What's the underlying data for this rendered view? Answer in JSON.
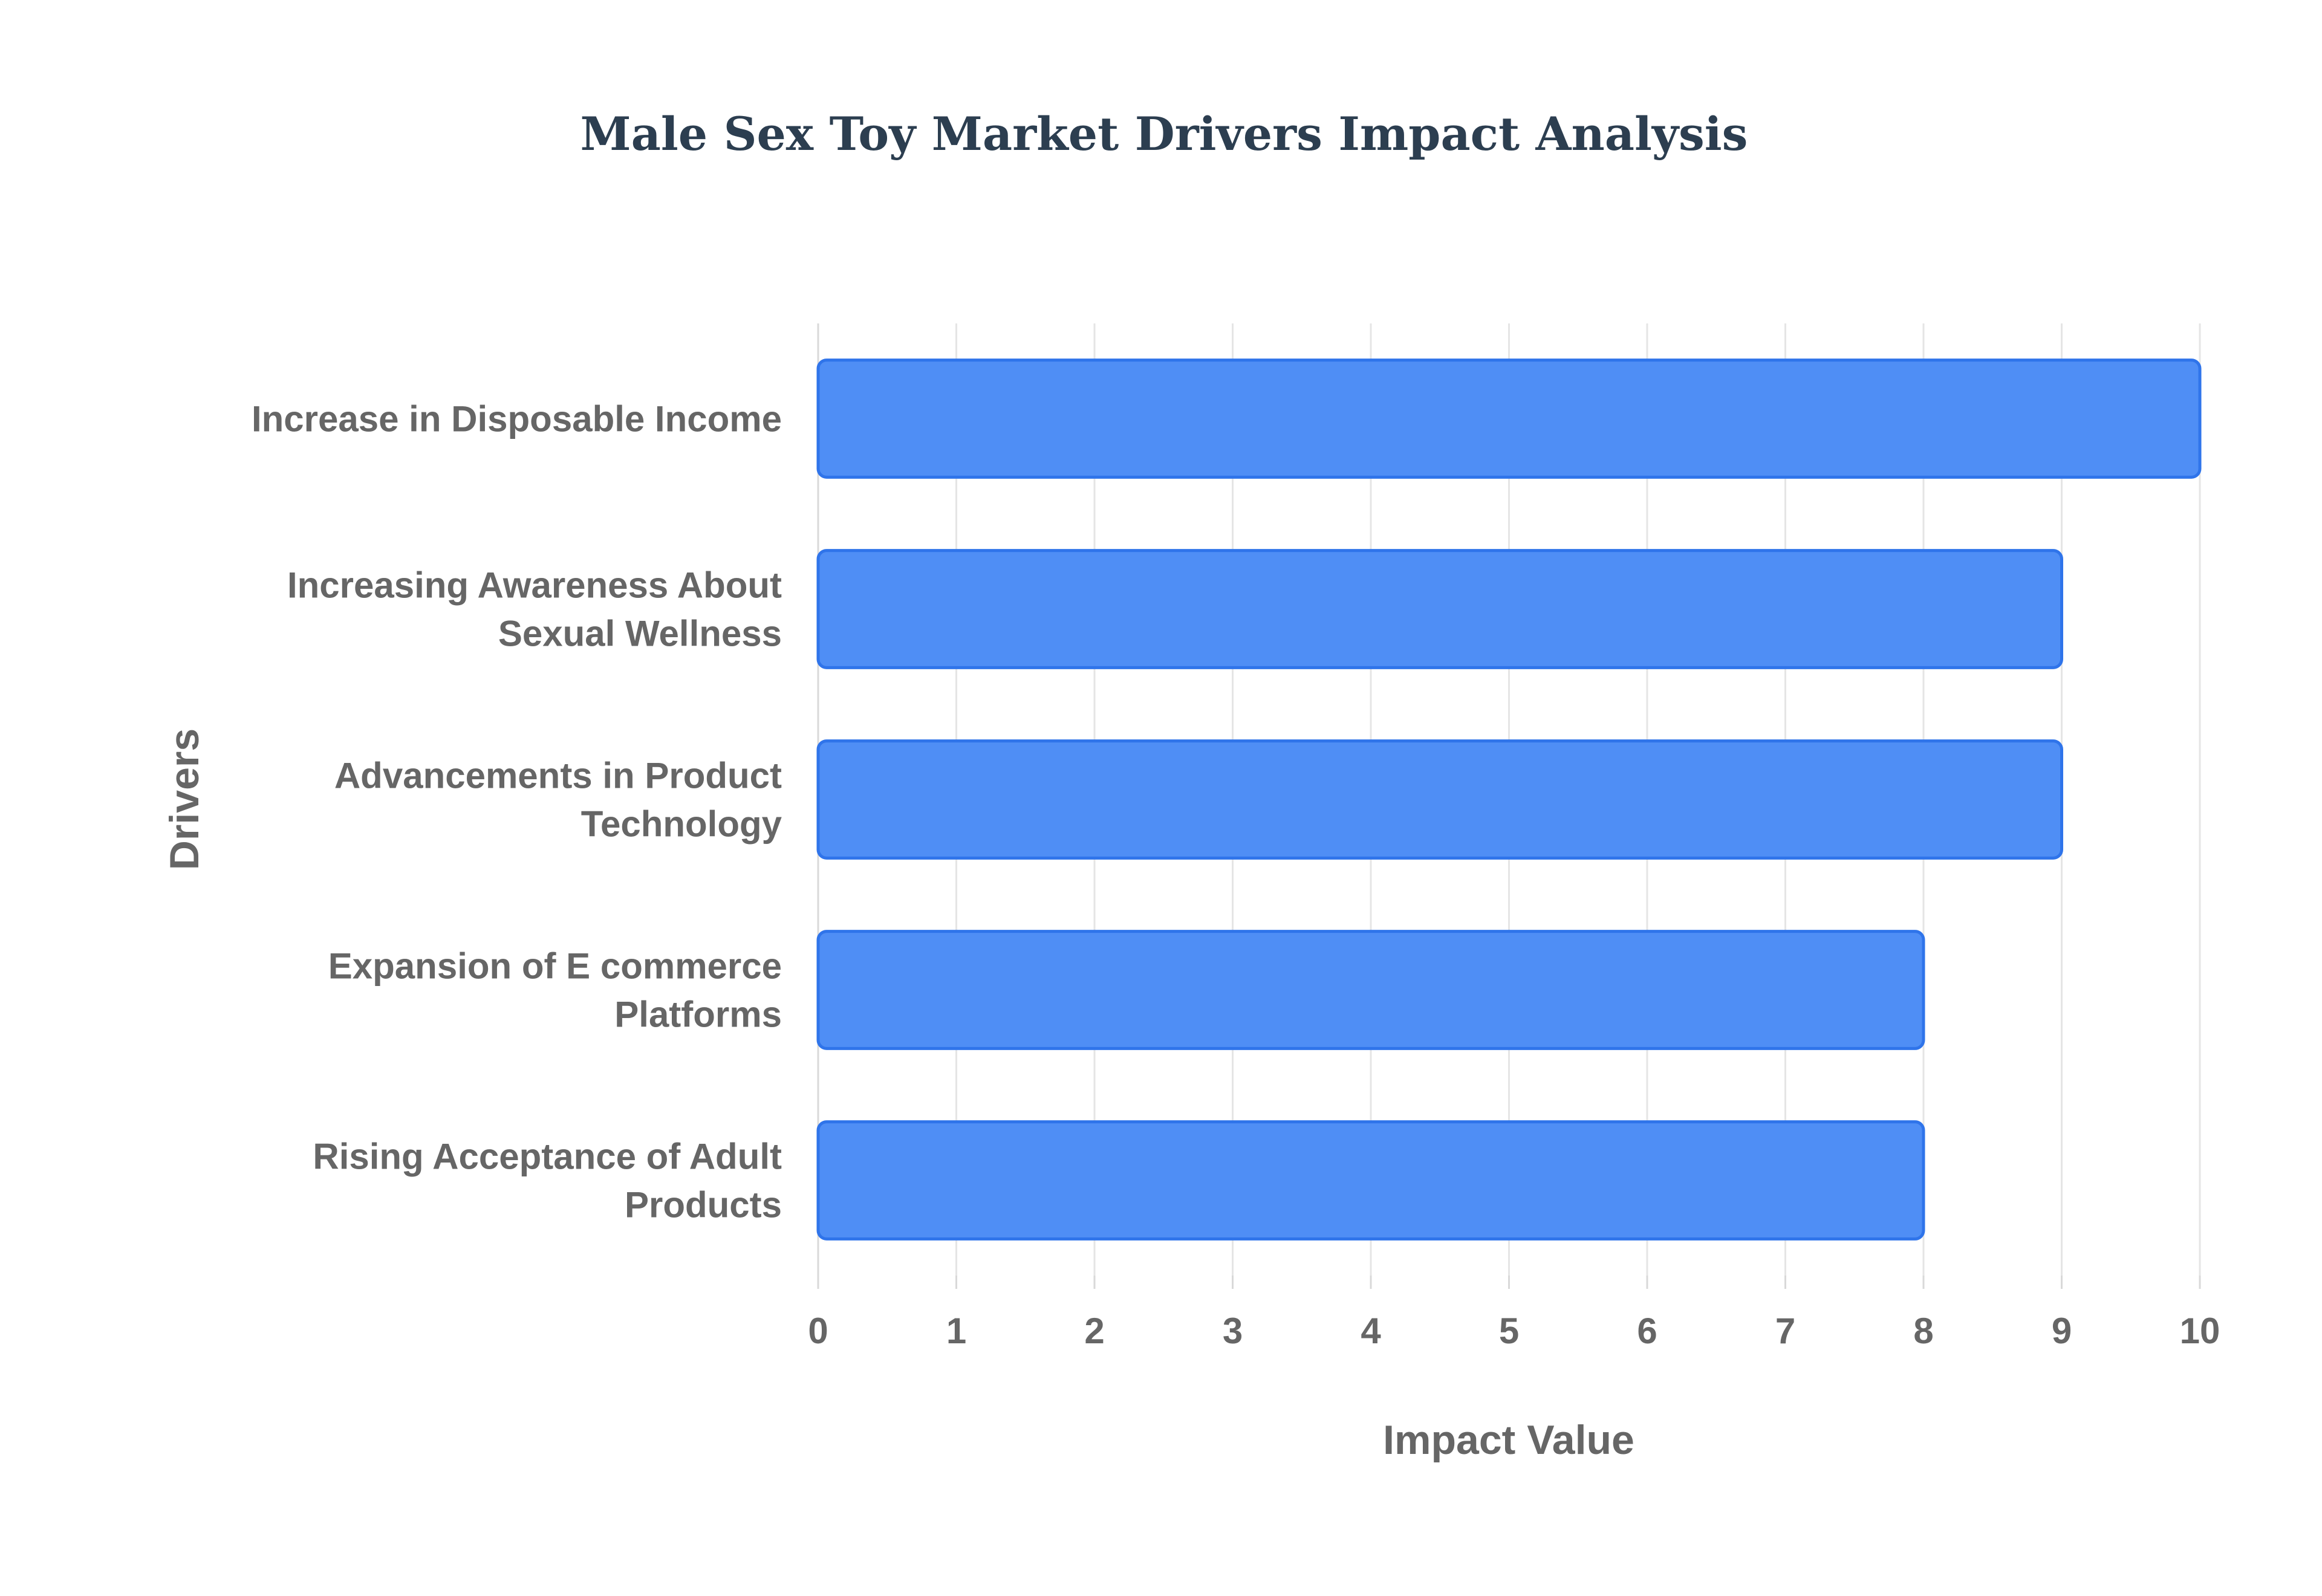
{
  "chart_data": {
    "type": "bar",
    "orientation": "horizontal",
    "title": "Male Sex Toy Market Drivers Impact Analysis",
    "xlabel": "Impact Value",
    "ylabel": "Drivers",
    "categories": [
      "Increase in Disposable Income",
      "Increasing Awareness About Sexual Wellness",
      "Advancements in Product Technology",
      "Expansion of E commerce Platforms",
      "Rising Acceptance of Adult Products"
    ],
    "category_lines": [
      [
        "Increase in Disposable Income"
      ],
      [
        "Increasing Awareness About",
        "Sexual Wellness"
      ],
      [
        "Advancements in Product",
        "Technology"
      ],
      [
        "Expansion of E commerce",
        "Platforms"
      ],
      [
        "Rising Acceptance of Adult",
        "Products"
      ]
    ],
    "values": [
      10,
      9,
      9,
      8,
      8
    ],
    "xlim": [
      0,
      10
    ],
    "xticks": [
      "0",
      "1",
      "2",
      "3",
      "4",
      "5",
      "6",
      "7",
      "8",
      "9",
      "10"
    ],
    "grid": true,
    "legend": "none",
    "colors": {
      "bar_fill": "#4f8ef5",
      "bar_stroke": "#2f74ea",
      "title": "#2c3e50",
      "label": "#666666",
      "grid": "#e5e5e5"
    }
  }
}
